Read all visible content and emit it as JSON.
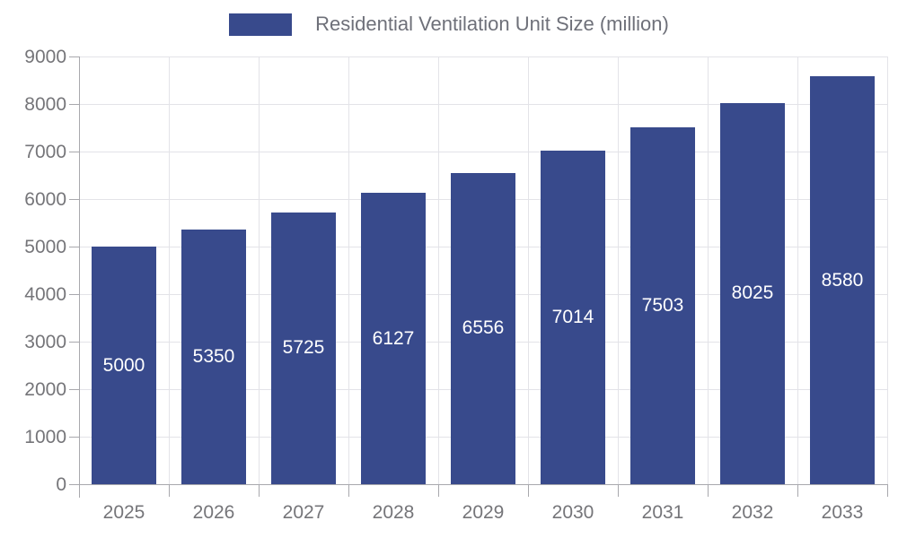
{
  "chart": {
    "legend_label": "Residential Ventilation Unit Size (million)",
    "colors": {
      "bar": "#384a8c",
      "legend_text": "#6e7079",
      "axis_text": "#757579",
      "grid": "#e3e3e8",
      "axis_line": "#a8a8ad",
      "value_label": "#ffffff"
    }
  },
  "chart_data": {
    "type": "bar",
    "title": "Residential Ventilation Unit Size (million)",
    "categories": [
      "2025",
      "2026",
      "2027",
      "2028",
      "2029",
      "2030",
      "2031",
      "2032",
      "2033"
    ],
    "values": [
      5000,
      5350,
      5725,
      6127,
      6556,
      7014,
      7503,
      8025,
      8580
    ],
    "xlabel": "",
    "ylabel": "",
    "ylim": [
      0,
      9000
    ],
    "ytick_step": 1000,
    "ytick_labels": [
      "0",
      "1000",
      "2000",
      "3000",
      "4000",
      "5000",
      "6000",
      "7000",
      "8000",
      "9000"
    ],
    "grid": true,
    "legend_position": "top",
    "value_labels": "inside-center"
  }
}
